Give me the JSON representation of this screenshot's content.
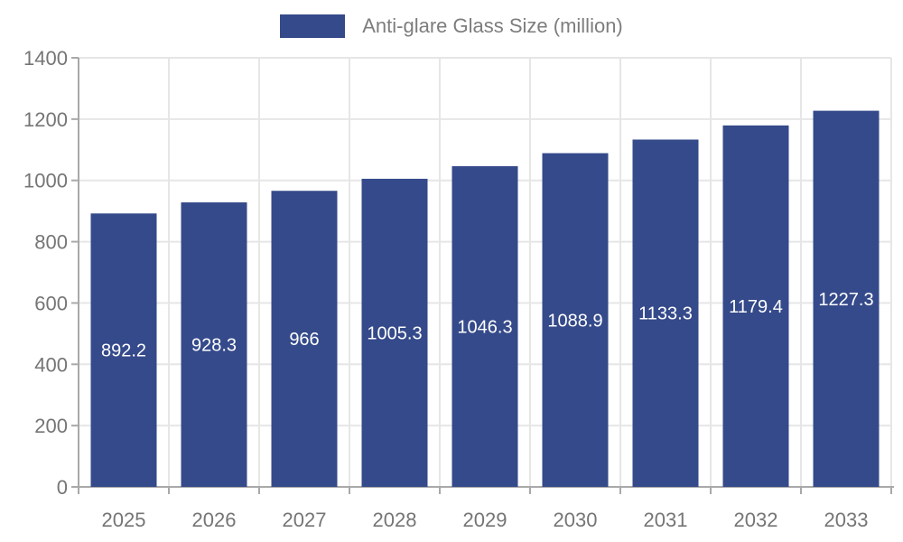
{
  "legend": {
    "label": "Anti-glare Glass Size (million)"
  },
  "colors": {
    "bar": "#354A8A",
    "grid": "#e6e6e6",
    "axis": "#a9a9a9",
    "tick_text": "#757575",
    "legend_text": "#7d7d7d",
    "bar_label_text": "#ffffff",
    "background": "#ffffff"
  },
  "chart_data": {
    "type": "bar",
    "title": "Anti-glare Glass Size (million)",
    "categories": [
      "2025",
      "2026",
      "2027",
      "2028",
      "2029",
      "2030",
      "2031",
      "2032",
      "2033"
    ],
    "values": [
      892.2,
      928.3,
      966,
      1005.3,
      1046.3,
      1088.9,
      1133.3,
      1179.4,
      1227.3
    ],
    "xlabel": "",
    "ylabel": "",
    "ylim": [
      0,
      1400
    ],
    "ytick_step": 200,
    "grid": true,
    "legend_position": "top-center",
    "value_labels": "inside-center"
  }
}
